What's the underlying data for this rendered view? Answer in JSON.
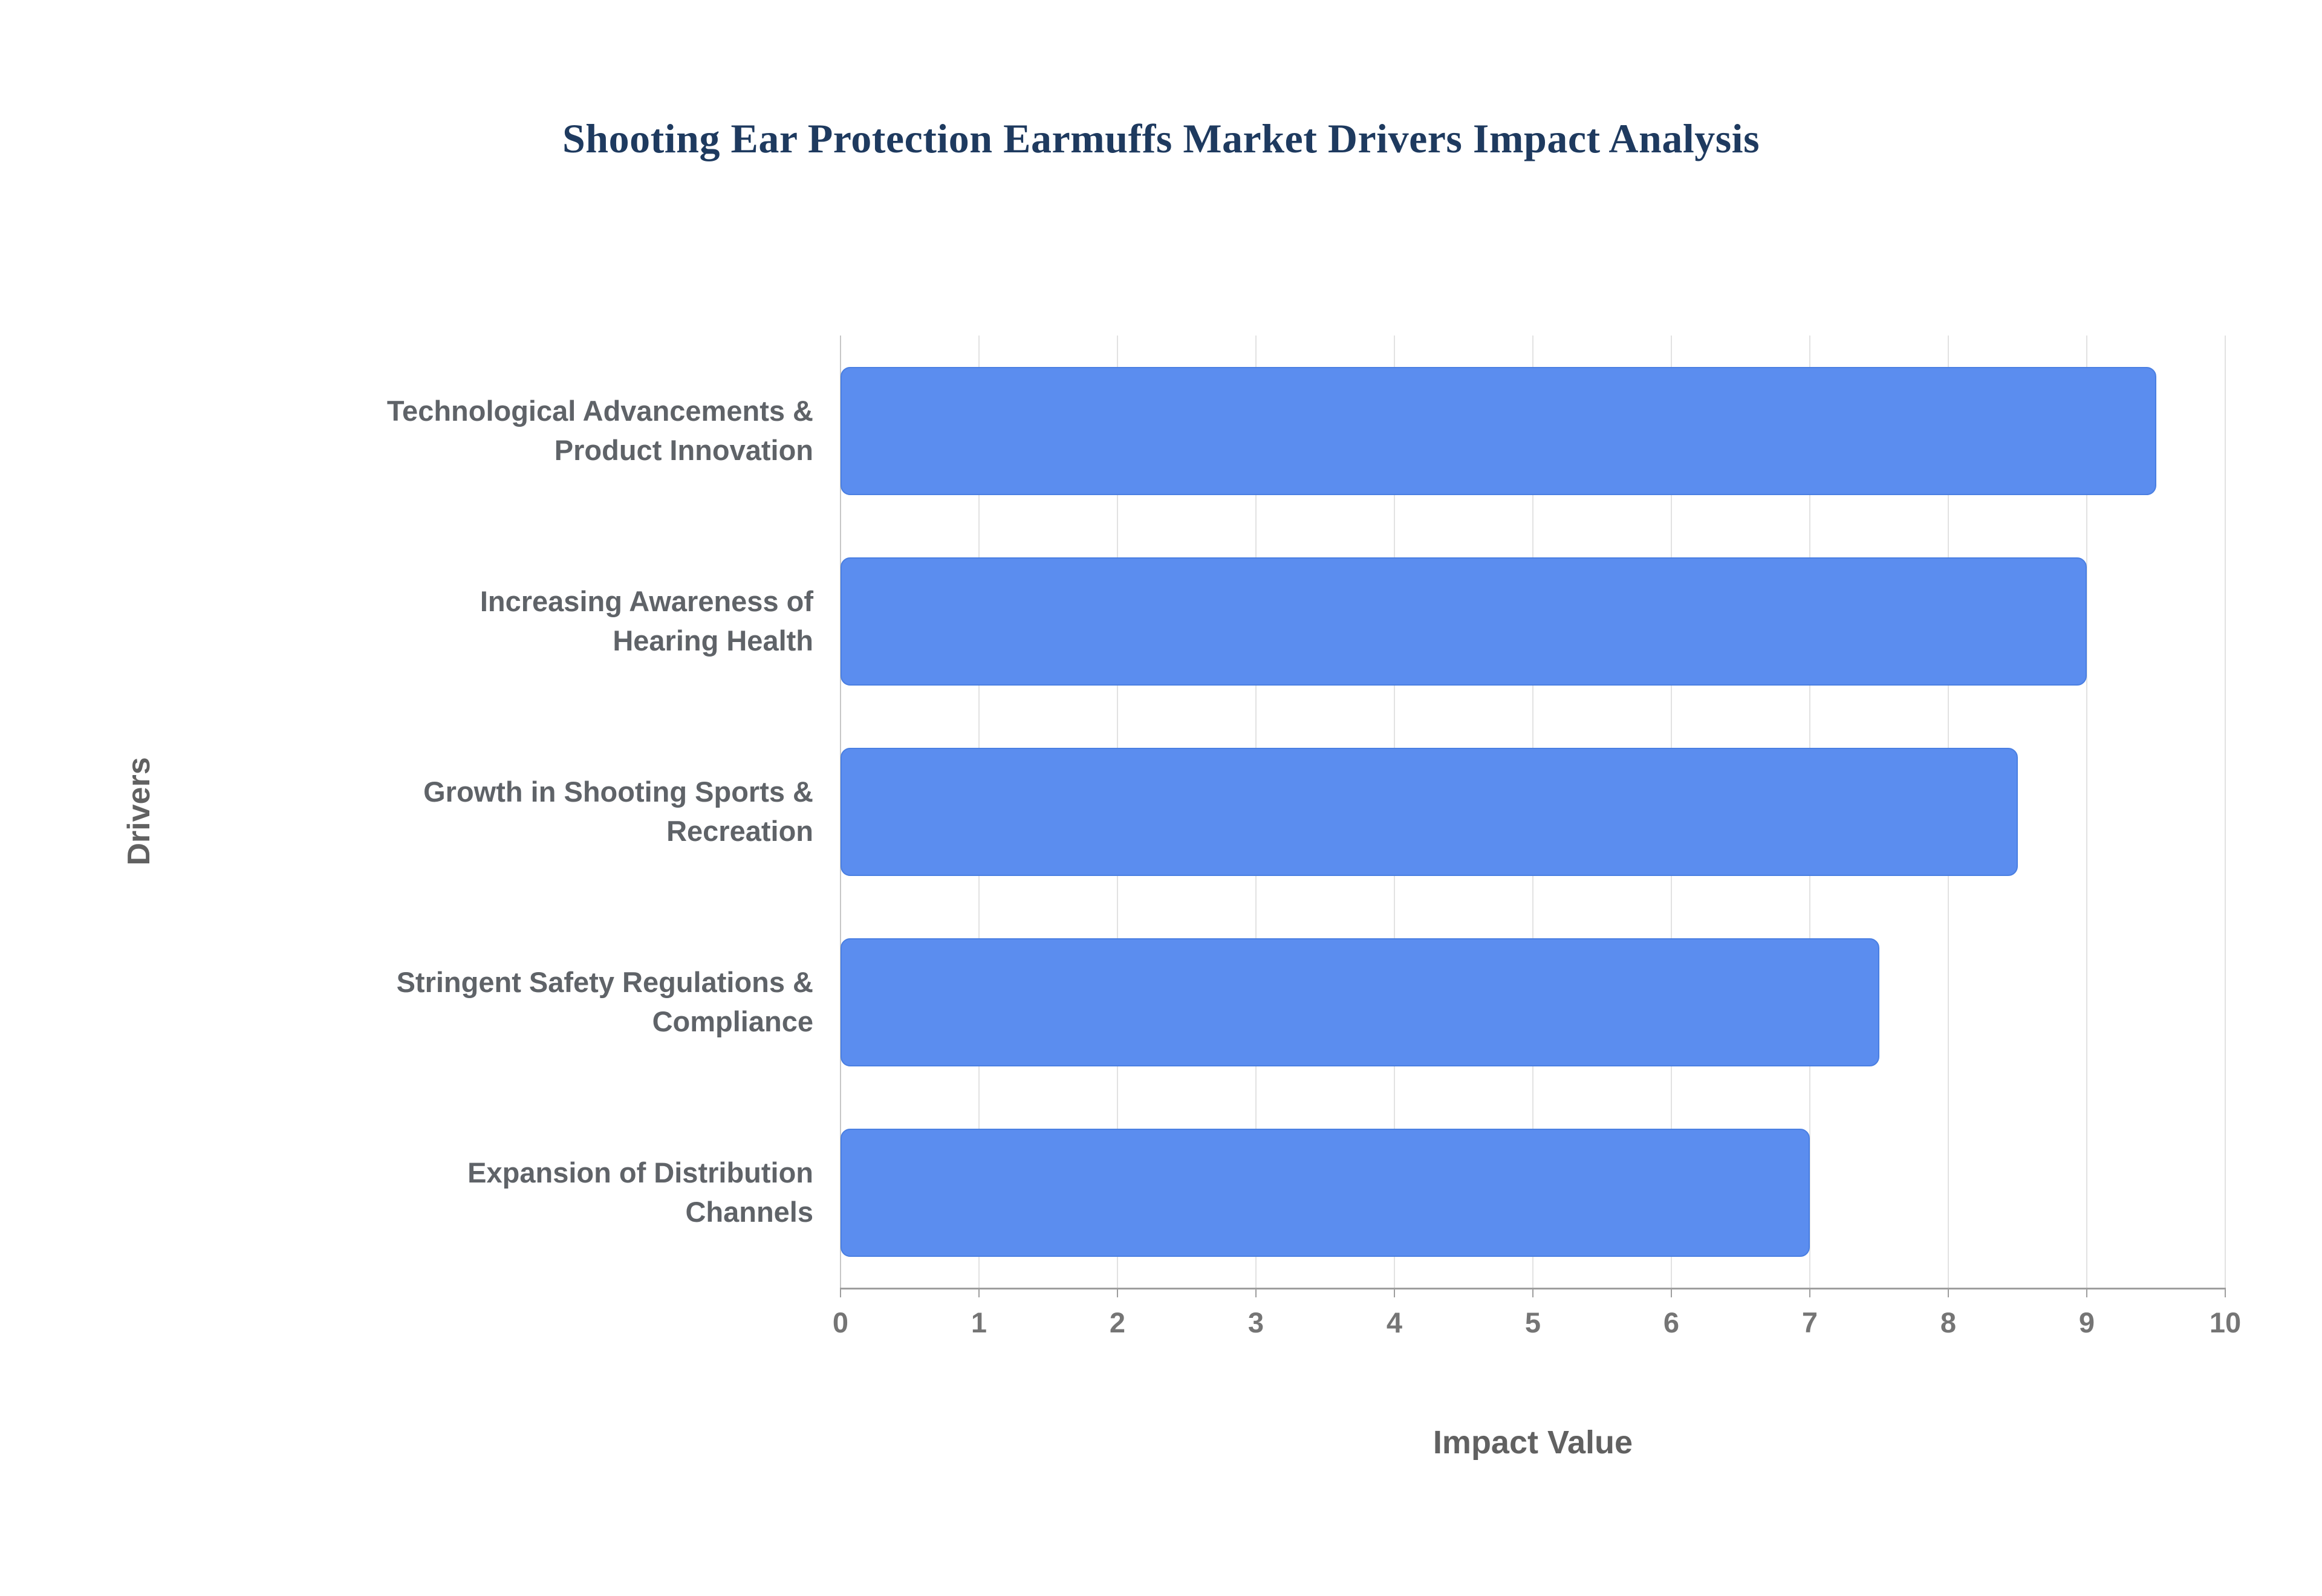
{
  "chart_data": {
    "type": "bar",
    "orientation": "horizontal",
    "title": "Shooting Ear Protection Earmuffs Market Drivers Impact Analysis",
    "xlabel": "Impact Value",
    "ylabel": "Drivers",
    "xlim": [
      0,
      10
    ],
    "xticks": [
      0,
      1,
      2,
      3,
      4,
      5,
      6,
      7,
      8,
      9,
      10
    ],
    "grid": true,
    "legend": false,
    "bar_color": "#5b8def",
    "categories": [
      "Technological Advancements & Product Innovation",
      "Increasing Awareness of Hearing Health",
      "Growth in Shooting Sports & Recreation",
      "Stringent Safety Regulations & Compliance",
      "Expansion of Distribution Channels"
    ],
    "category_lines": [
      [
        "Technological Advancements &",
        "Product Innovation"
      ],
      [
        "Increasing Awareness of",
        "Hearing Health"
      ],
      [
        "Growth in Shooting Sports &",
        "Recreation"
      ],
      [
        "Stringent Safety Regulations &",
        "Compliance"
      ],
      [
        "Expansion of Distribution",
        "Channels"
      ]
    ],
    "values": [
      9.5,
      9,
      8.5,
      7.5,
      7
    ]
  }
}
